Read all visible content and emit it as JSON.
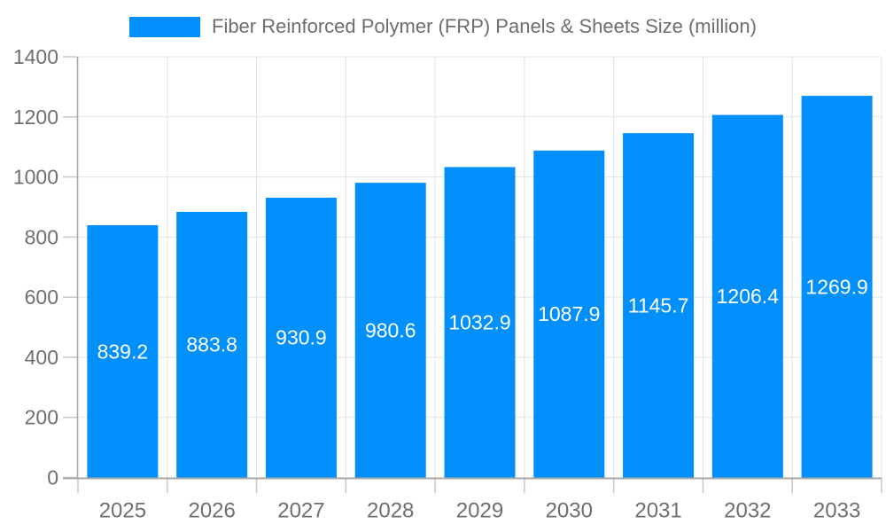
{
  "legend": {
    "position": "top"
  },
  "colors": {
    "bar": "#008FFB",
    "legend_text": "#6e6e6e",
    "axis_label": "#6f6f6f",
    "grid_line": "#e3e3e3",
    "axis_line": "#a8a8a8",
    "tick_line": "#c9c9c9",
    "value_label": "#ffffff",
    "background": "#ffffff"
  },
  "chart_data": {
    "type": "bar",
    "title": "Fiber Reinforced Polymer (FRP) Panels & Sheets Size (million)",
    "categories": [
      "2025",
      "2026",
      "2027",
      "2028",
      "2029",
      "2030",
      "2031",
      "2032",
      "2033"
    ],
    "values": [
      839.2,
      883.8,
      930.9,
      980.6,
      1032.9,
      1087.9,
      1145.7,
      1206.4,
      1269.9
    ],
    "xlabel": "",
    "ylabel": "",
    "ylim": [
      0,
      1400
    ],
    "ytick_step": 200,
    "ytick_labels": [
      "0",
      "200",
      "400",
      "600",
      "800",
      "1000",
      "1200",
      "1400"
    ],
    "grid": true,
    "legend_position": "top",
    "value_label_position": "inside-center"
  }
}
